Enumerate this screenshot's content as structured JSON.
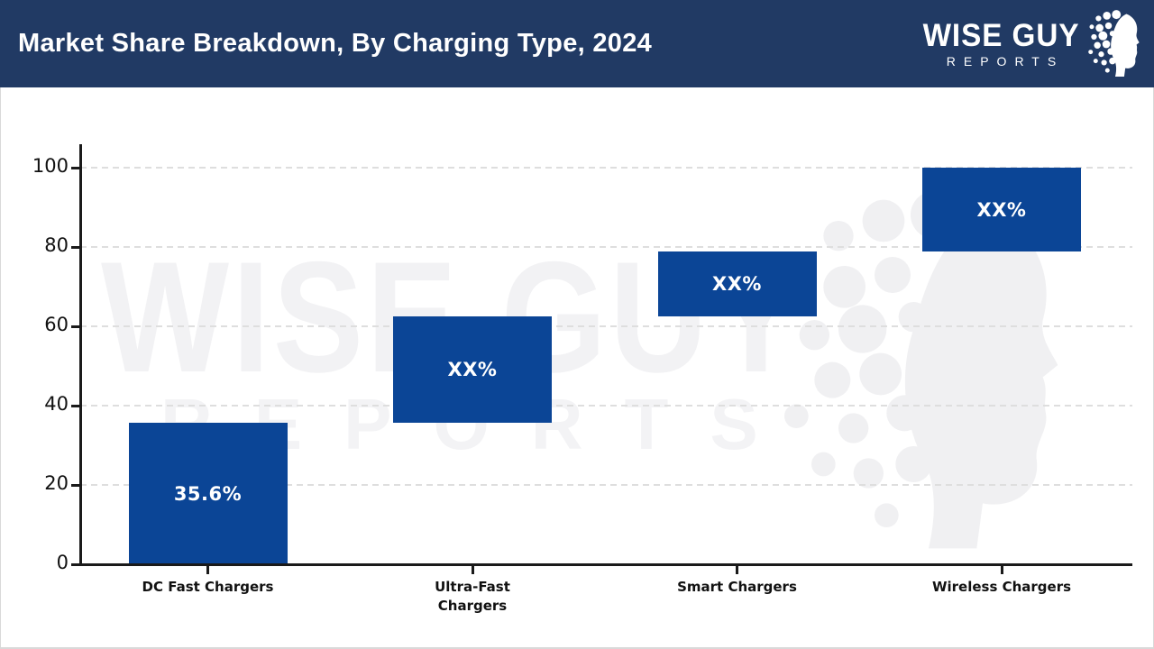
{
  "header": {
    "title": "Market Share Breakdown, By Charging Type, 2024",
    "logo": {
      "line1": "WISE GUY",
      "line2": "REPORTS"
    }
  },
  "watermark": {
    "line1": "WISE GUY",
    "line2": "REPORTS"
  },
  "colors": {
    "header_bg": "#213a64",
    "bar_blue": "#0b4596",
    "gridline": "#dedede",
    "axis": "#1a1a1a",
    "watermark_gray": "#f2f2f4"
  },
  "chart_data": {
    "type": "bar",
    "subtype": "floating-waterfall",
    "title": "Market Share Breakdown, By Charging Type, 2024",
    "categories": [
      "DC Fast Chargers",
      "Ultra-Fast\nChargers",
      "Smart Chargers",
      "Wireless Chargers"
    ],
    "segments": [
      {
        "category": "DC Fast Chargers",
        "start": 0,
        "end": 35.6,
        "label": "35.6%"
      },
      {
        "category": "Ultra-Fast Chargers",
        "start": 35.6,
        "end": 62.5,
        "label": "XX%"
      },
      {
        "category": "Smart Chargers",
        "start": 62.5,
        "end": 78.8,
        "label": "XX%"
      },
      {
        "category": "Wireless Chargers",
        "start": 78.8,
        "end": 100,
        "label": "XX%"
      }
    ],
    "xlabel": "",
    "ylabel": "",
    "ylim": [
      0,
      100
    ],
    "yticks": [
      0,
      20,
      40,
      60,
      80,
      100
    ],
    "grid": "horizontal-dashed",
    "legend": "none",
    "bar_color": "#0b4596",
    "bar_label_color": "#ffffff"
  }
}
